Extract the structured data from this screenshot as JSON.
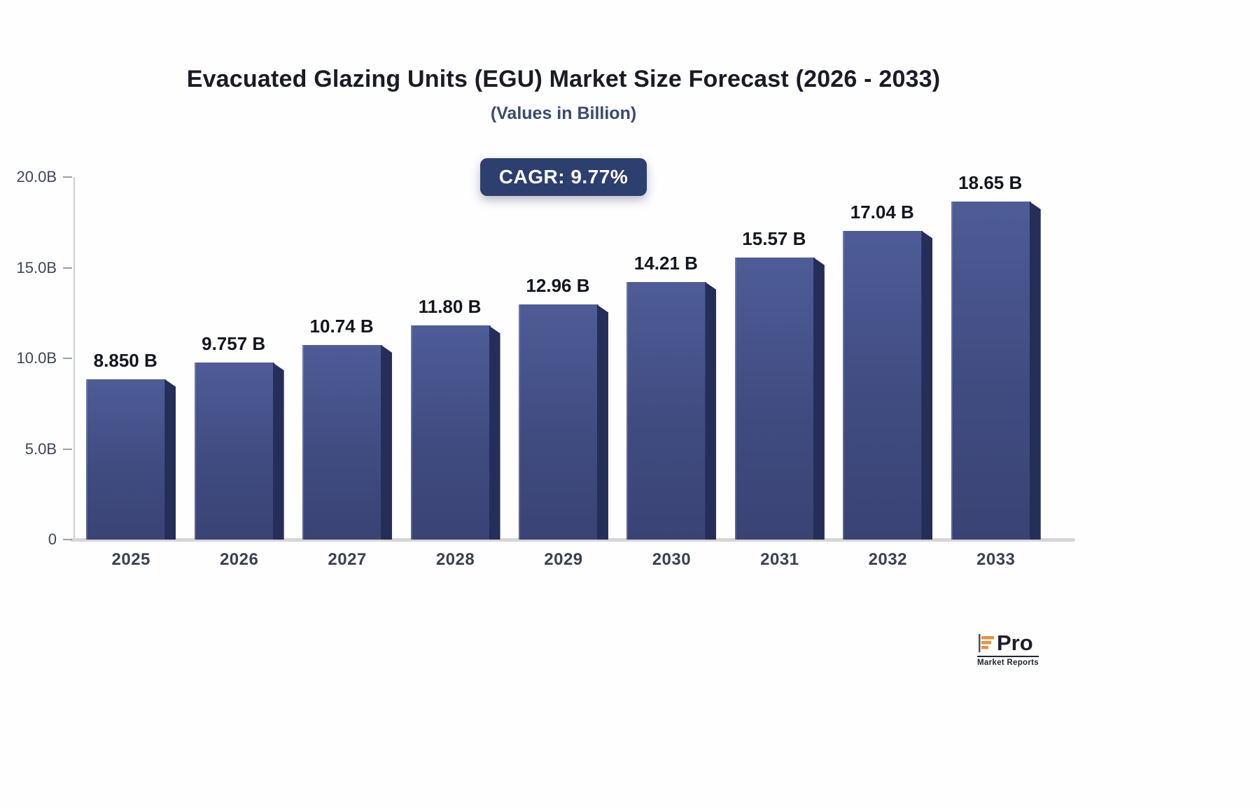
{
  "header": {
    "title": "Evacuated Glazing Units (EGU) Market Size Forecast (2026 - 2033)",
    "subtitle": "(Values in Billion)"
  },
  "badge": {
    "label": "CAGR: 9.77%"
  },
  "chart_data": {
    "type": "bar",
    "title": "Evacuated Glazing Units (EGU) Market Size Forecast (2026 - 2033)",
    "subtitle": "(Values in Billion)",
    "cagr_percent": 9.77,
    "categories": [
      "2025",
      "2026",
      "2027",
      "2028",
      "2029",
      "2030",
      "2031",
      "2032",
      "2033"
    ],
    "values": [
      8.85,
      9.757,
      10.74,
      11.8,
      12.96,
      14.21,
      15.57,
      17.04,
      18.65
    ],
    "value_labels": [
      "8.850 B",
      "9.757 B",
      "10.74 B",
      "11.80 B",
      "12.96 B",
      "14.21 B",
      "15.57 B",
      "17.04 B",
      "18.65 B"
    ],
    "xlabel": "",
    "ylabel": "",
    "ylim": [
      0,
      20
    ],
    "ytick_labels": [
      "0",
      "5.0B",
      "10.0B",
      "15.0B",
      "20.0B"
    ],
    "grid": false,
    "legend": false,
    "bar_face_color_top": "#4e5c97",
    "bar_face_color_mid": "#404b80",
    "bar_face_color_bottom": "#3a4374",
    "bar_side_color": "#252e59",
    "badge_color": "#2d3f6e"
  },
  "logo": {
    "name": "Pro",
    "tagline": "Market Reports",
    "accent_color": "#e8923a"
  }
}
